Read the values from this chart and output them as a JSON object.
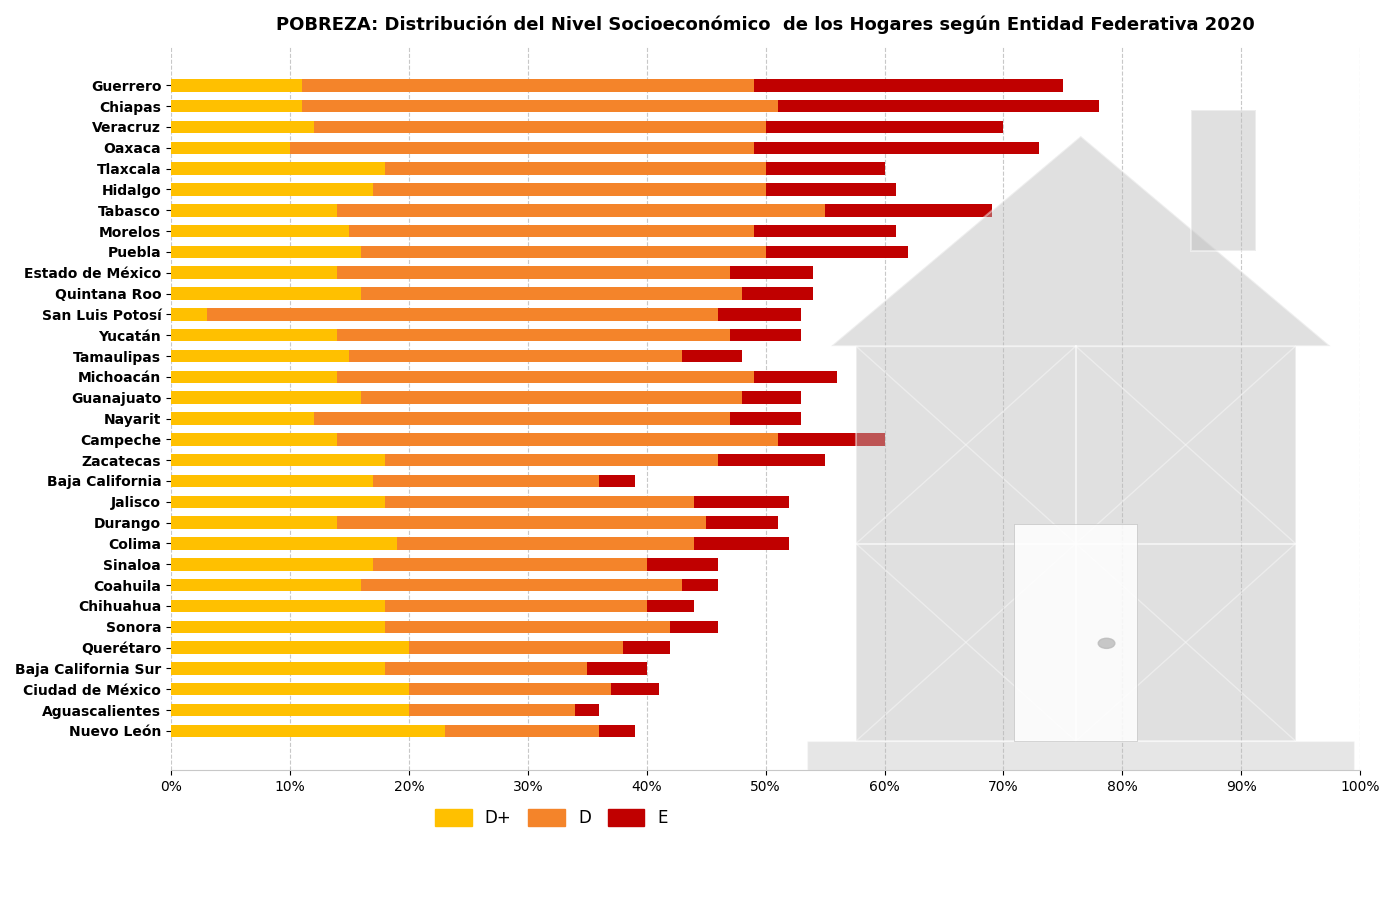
{
  "title": "POBREZA: Distribución del Nivel Socioeconómico  de los Hogares según Entidad Federativa 2020",
  "states": [
    "Guerrero",
    "Chiapas",
    "Veracruz",
    "Oaxaca",
    "Tlaxcala",
    "Hidalgo",
    "Tabasco",
    "Morelos",
    "Puebla",
    "Estado de México",
    "Quintana Roo",
    "San Luis Potosí",
    "Yucatán",
    "Tamaulipas",
    "Michoacán",
    "Guanajuato",
    "Nayarit",
    "Campeche",
    "Zacatecas",
    "Baja California",
    "Jalisco",
    "Durango",
    "Colima",
    "Sinaloa",
    "Coahuila",
    "Chihuahua",
    "Sonora",
    "Querétaro",
    "Baja California Sur",
    "Ciudad de México",
    "Aguascalientes",
    "Nuevo León"
  ],
  "D_plus": [
    11,
    11,
    12,
    10,
    18,
    17,
    14,
    15,
    16,
    14,
    16,
    3,
    14,
    15,
    14,
    16,
    12,
    14,
    18,
    17,
    18,
    14,
    19,
    17,
    16,
    18,
    18,
    20,
    18,
    20,
    20,
    23
  ],
  "D": [
    38,
    40,
    38,
    39,
    32,
    33,
    41,
    34,
    34,
    33,
    32,
    43,
    33,
    28,
    35,
    32,
    35,
    37,
    28,
    19,
    26,
    31,
    25,
    23,
    27,
    22,
    24,
    18,
    17,
    17,
    14,
    13
  ],
  "E": [
    26,
    27,
    20,
    24,
    10,
    11,
    14,
    12,
    12,
    7,
    6,
    7,
    6,
    5,
    7,
    5,
    6,
    9,
    9,
    3,
    8,
    6,
    8,
    6,
    3,
    4,
    4,
    4,
    5,
    4,
    2,
    3
  ],
  "color_dplus": "#FFC000",
  "color_d": "#F4842A",
  "color_e": "#C00000",
  "xlim": [
    0,
    1.0
  ],
  "xticks": [
    0.0,
    0.1,
    0.2,
    0.3,
    0.4,
    0.5,
    0.6,
    0.7,
    0.8,
    0.9,
    1.0
  ],
  "xtick_labels": [
    "0%",
    "10%",
    "20%",
    "30%",
    "40%",
    "50%",
    "60%",
    "70%",
    "80%",
    "90%",
    "100%"
  ],
  "background_color": "#FFFFFF",
  "grid_color": "#C8C8C8",
  "house_color": "#BBBBBB",
  "house_alpha": 0.45
}
